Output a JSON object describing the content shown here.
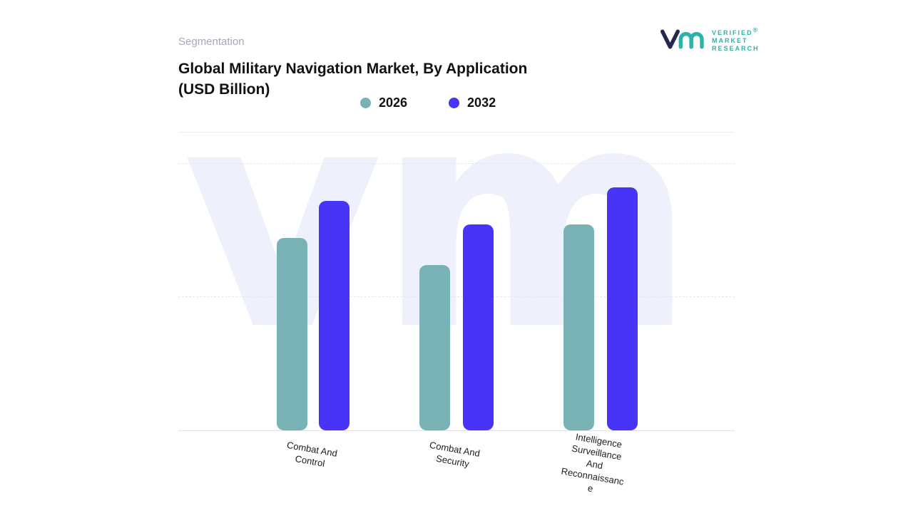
{
  "header": {
    "eyebrow": "Segmentation",
    "title_line1": "Global Military Navigation Market, By Application",
    "title_line2": "(USD Billion)"
  },
  "logo": {
    "monogram": "vm",
    "line1": "VERIFIED",
    "line2": "MARKET",
    "line3": "RESEARCH",
    "registered": "®",
    "teal": "#2cb4aa",
    "navy": "#23284e",
    "registered_color": "#f0823c"
  },
  "chart_data": {
    "type": "bar",
    "title": "Global Military Navigation Market, By Application (USD Billion)",
    "categories": [
      "Combat And Control",
      "Combat And Security",
      "Intelligence Surveillance And Reconnaissance"
    ],
    "series": [
      {
        "name": "2026",
        "color": "#79b2b5",
        "values": [
          72,
          62,
          77
        ]
      },
      {
        "name": "2032",
        "color": "#4734f6",
        "values": [
          86,
          77,
          91
        ]
      }
    ],
    "ylim": [
      0,
      100
    ],
    "y_axis_labels_visible": false,
    "grid": "horizontal-dashed",
    "legend_position": "top-center",
    "watermark": "vm"
  }
}
